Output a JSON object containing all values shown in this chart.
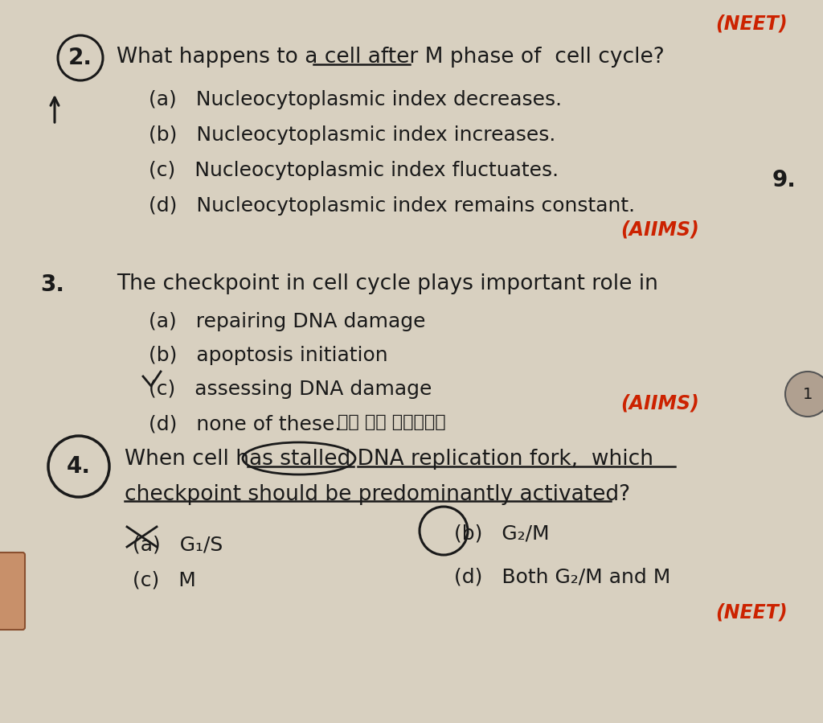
{
  "bg_color": "#d8d0c0",
  "text_color": "#1a1a1a",
  "red_color": "#cc2200",
  "title_top_right": "(NEET)",
  "q2_circle_label": "2.",
  "q2_question": "What happens to a cell after M phase of  cell cycle?",
  "q2_options": [
    "(a)   Nucleocytoplasmic index decreases.",
    "(b)   Nucleocytoplasmic index increases.",
    "(c)   Nucleocytoplasmic index fluctuates.",
    "(d)   Nucleocytoplasmic index remains constant."
  ],
  "q2_source": "(AIIMS)",
  "q3_number": "3.",
  "q3_question": "The checkpoint in cell cycle plays important role in",
  "q3_options": [
    "(a)   repairing DNA damage",
    "(b)   apoptosis initiation",
    "(c)   assessing DNA damage",
    "(d)   none of these."
  ],
  "q3_source": "(AIIMS)",
  "q4_circle_label": "4.",
  "q4_line1": "When cell has stalled DNA replication fork,  which",
  "q4_line2": "checkpoint should be predominantly activated?",
  "q4_opt_a": "(a)   G₁/S",
  "q4_opt_b": "(b)   G₂/M",
  "q4_opt_c": "(c)   M",
  "q4_opt_d": "(d)   Both G₂/M and M",
  "q4_source": "(NEET)",
  "side_label": "9.",
  "fq": 19,
  "fo": 18,
  "fs": 17,
  "fn": 20
}
